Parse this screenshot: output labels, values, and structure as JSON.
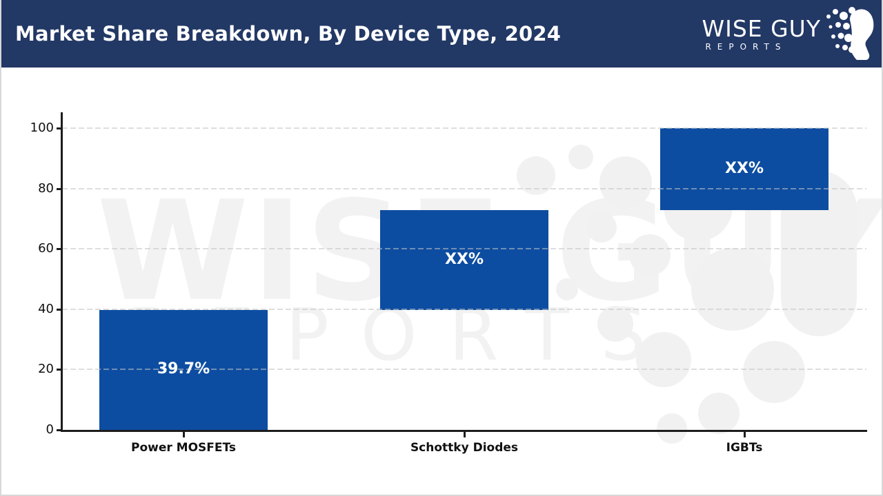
{
  "header": {
    "title": "Market Share Breakdown, By Device Type, 2024",
    "logo": {
      "line1": "WISE GUY",
      "line2": "REPORTS"
    }
  },
  "watermark": {
    "line1": "WISE GUY",
    "line2": "REPORTS"
  },
  "colors": {
    "header_bg": "#223865",
    "bar": "#0d4da1",
    "bar_label": "#ffffff",
    "axis": "#1c1c1c",
    "gridline": "#d9d9d9",
    "watermark": "#f2f2f2",
    "edge_border": "#d8d8d8"
  },
  "chart_data": {
    "type": "bar",
    "subtype": "floating-waterfall",
    "title": "Market Share Breakdown, By Device Type, 2024",
    "categories": [
      "Power MOSFETs",
      "Schottky Diodes",
      "IGBTs"
    ],
    "series": [
      {
        "name": "Market Share %",
        "base": [
          0,
          39.7,
          72.8
        ],
        "top": [
          39.7,
          72.8,
          100
        ],
        "segment_values": [
          39.7,
          33.1,
          27.2
        ],
        "labels": [
          "39.7%",
          "XX%",
          "XX%"
        ]
      }
    ],
    "xlabel": "",
    "ylabel": "",
    "ylim": [
      0,
      100
    ],
    "yticks": [
      0,
      20,
      40,
      60,
      80,
      100
    ],
    "grid": "horizontal-dashed-over-bars",
    "legend": "none"
  }
}
